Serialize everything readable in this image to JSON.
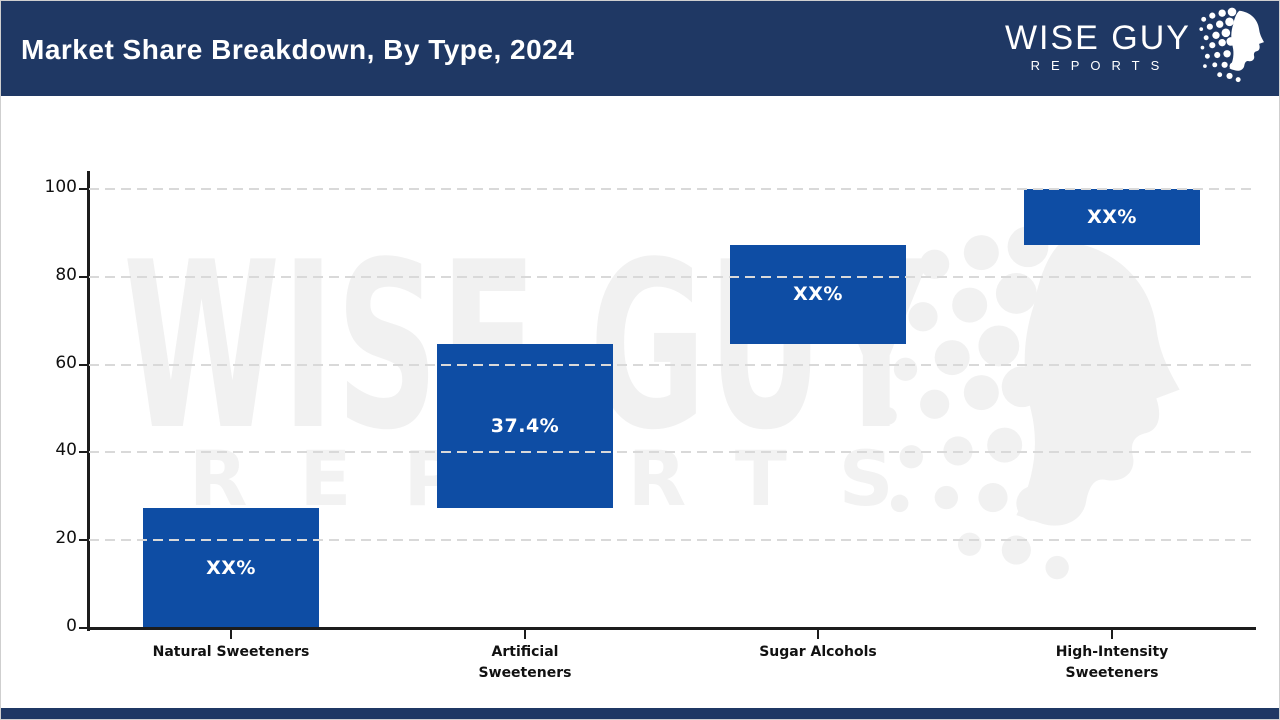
{
  "header": {
    "title": "Market Share Breakdown, By Type, 2024",
    "logo": {
      "line1": "WISE GUY",
      "line2": "REPORTS"
    }
  },
  "watermark": {
    "line1": "WISE GUY",
    "line2": "REPORTS"
  },
  "colors": {
    "header_bg": "#1f3864",
    "footer_bg": "#1f3864",
    "bar": "#0e4da4",
    "bar_label_text": "#ffffff",
    "grid": "#d9d9d9",
    "axis": "#1c1c1c",
    "tick_text": "#111111",
    "watermark": "#f1f1f1"
  },
  "chart_data": {
    "type": "bar",
    "subtype": "floating-waterfall",
    "title": "Market Share Breakdown, By Type, 2024",
    "categories": [
      "Natural Sweeteners",
      "Artificial Sweeteners",
      "Sugar Alcohols",
      "High-Intensity Sweeteners"
    ],
    "segments": [
      {
        "category": "Natural Sweeteners",
        "start": 0,
        "end": 27.4,
        "label": "XX%"
      },
      {
        "category": "Artificial Sweeteners",
        "start": 27.4,
        "end": 64.8,
        "label": "37.4%"
      },
      {
        "category": "Sugar Alcohols",
        "start": 64.8,
        "end": 87.2,
        "label": "XX%"
      },
      {
        "category": "High-Intensity Sweeteners",
        "start": 87.2,
        "end": 100,
        "label": "XX%"
      }
    ],
    "y_ticks": [
      0,
      20,
      40,
      60,
      80,
      100
    ],
    "ylim": [
      0,
      100
    ],
    "xlabel": "",
    "ylabel": "",
    "grid": "horizontal-dashed",
    "legend": "none"
  }
}
